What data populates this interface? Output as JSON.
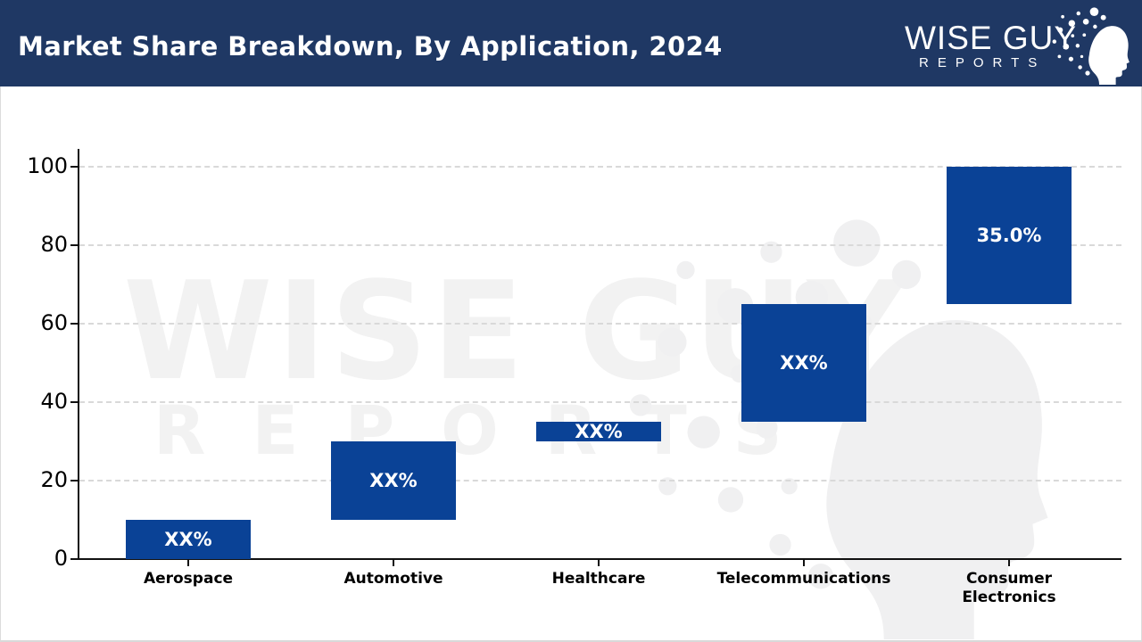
{
  "header": {
    "title": "Market Share Breakdown, By Application, 2024",
    "logo": {
      "line1": "WISE GUY",
      "line2": "REPORTS"
    }
  },
  "watermark": {
    "line1": "WISE GUY",
    "line2": "REPORTS"
  },
  "colors": {
    "header_bg": "#1f3864",
    "bar": "#0a4296",
    "bar_label": "#ffffff",
    "gridline": "#d9d9d9",
    "axis": "#111111",
    "watermark": "#f2f2f2"
  },
  "chart_data": {
    "type": "bar",
    "subtype": "waterfall",
    "title": "Market Share Breakdown, By Application, 2024",
    "categories": [
      "Aerospace",
      "Automotive",
      "Healthcare",
      "Telecommunications",
      "Consumer Electronics"
    ],
    "tick_labels": [
      "Aerospace",
      "Automotive",
      "Healthcare",
      "Telecommunications",
      "Consumer\nElectronics"
    ],
    "series": [
      {
        "name": "Market Share",
        "segments": [
          {
            "category": "Aerospace",
            "start": 0,
            "end": 10,
            "label": "XX%"
          },
          {
            "category": "Automotive",
            "start": 10,
            "end": 30,
            "label": "XX%"
          },
          {
            "category": "Healthcare",
            "start": 30,
            "end": 35,
            "label": "XX%"
          },
          {
            "category": "Telecommunications",
            "start": 35,
            "end": 65,
            "label": "XX%"
          },
          {
            "category": "Consumer Electronics",
            "start": 65,
            "end": 100,
            "label": "35.0%"
          }
        ]
      }
    ],
    "xlabel": "",
    "ylabel": "",
    "ylim": [
      0,
      100
    ],
    "yticks": [
      0,
      20,
      40,
      60,
      80,
      100
    ],
    "grid": "horizontal-dashed",
    "legend": "none"
  }
}
